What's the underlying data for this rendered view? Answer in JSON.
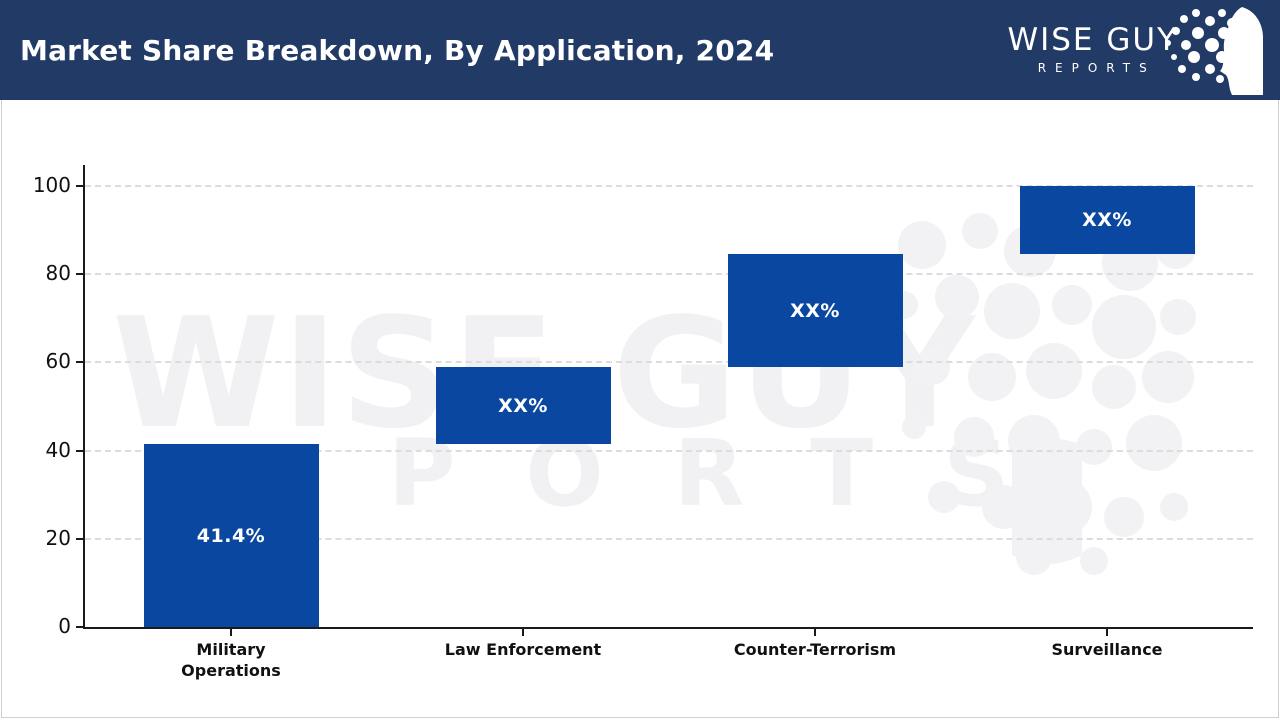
{
  "header": {
    "title": "Market Share Breakdown, By Application, 2024",
    "logo": {
      "line1": "WISE GUY",
      "line2": "REPORTS"
    }
  },
  "watermark": {
    "line1": "WISE GUY",
    "line2": "PORTS"
  },
  "chart_data": {
    "type": "bar",
    "subtype": "waterfall",
    "title": "Market Share Breakdown, By Application, 2024",
    "categories": [
      "Military\nOperations",
      "Law Enforcement",
      "Counter-Terrorism",
      "Surveillance"
    ],
    "segments": [
      {
        "category": "Military Operations",
        "start": 0,
        "end": 41.4,
        "label": "41.4%"
      },
      {
        "category": "Law Enforcement",
        "start": 41.4,
        "end": 58.9,
        "label": "XX%"
      },
      {
        "category": "Counter-Terrorism",
        "start": 58.9,
        "end": 84.6,
        "label": "XX%"
      },
      {
        "category": "Surveillance",
        "start": 84.6,
        "end": 100,
        "label": "XX%"
      }
    ],
    "xlabel": "",
    "ylabel": "",
    "ylim": [
      0,
      100
    ],
    "yticks": [
      0,
      20,
      40,
      60,
      80,
      100
    ],
    "grid": "horizontal-dashed",
    "legend": "none",
    "bar_color": "#0a47a0",
    "bar_label_color": "#ffffff"
  },
  "colors": {
    "header_bg": "#213a66",
    "header_text": "#ffffff",
    "bar": "#0a47a0",
    "axis": "#1a1a1a",
    "tick_text": "#111111",
    "gridline": "#dcdcdc",
    "watermark": "#f1f1f4",
    "page_bg": "#ffffff",
    "border": "#cfcfcf"
  }
}
